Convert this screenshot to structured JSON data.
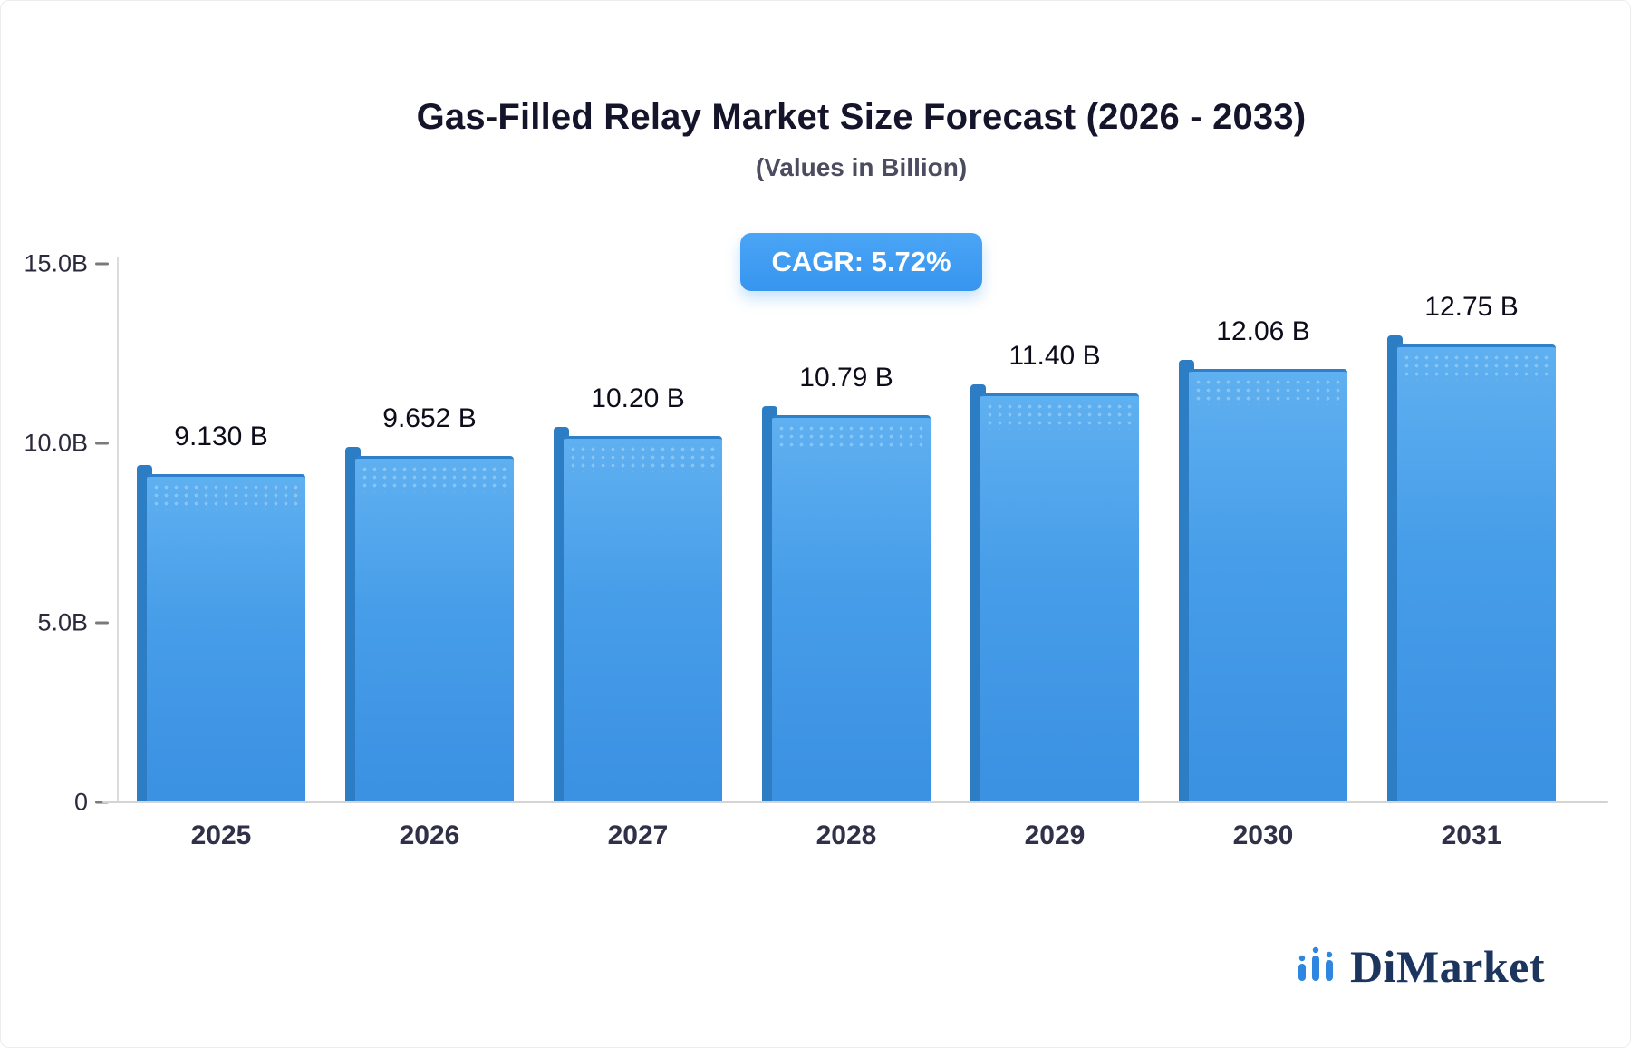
{
  "chart_data": {
    "type": "bar",
    "title": "Gas-Filled Relay Market Size Forecast (2026 - 2033)",
    "subtitle": "(Values in Billion)",
    "badge": "CAGR: 5.72%",
    "categories": [
      "2025",
      "2026",
      "2027",
      "2028",
      "2029",
      "2030",
      "2031"
    ],
    "values": [
      9.13,
      9.652,
      10.2,
      10.79,
      11.4,
      12.06,
      12.75
    ],
    "value_labels": [
      "9.130 B",
      "9.652 B",
      "10.20 B",
      "10.79 B",
      "11.40 B",
      "12.06 B",
      "12.75 B"
    ],
    "ytick_labels": [
      "15.0B",
      "10.0B",
      "5.0B",
      "0"
    ],
    "ylim": [
      0,
      15
    ],
    "xlabel": "",
    "ylabel": "",
    "grid": false,
    "legend": null,
    "colors": {
      "bar_main_top": "#5fb0f0",
      "bar_main_bottom": "#3b91e2",
      "bar_side": "#2d7dc4",
      "badge_bg": "#3f9ef2",
      "badge_text": "#ffffff",
      "axis_line": "#d4d4d4",
      "title_text": "#14142b",
      "subtitle_text": "#4c4c60",
      "logo_text": "#1c355f",
      "logo_icon": "#2e86e0"
    }
  },
  "logo": {
    "text": "DiMarket"
  }
}
